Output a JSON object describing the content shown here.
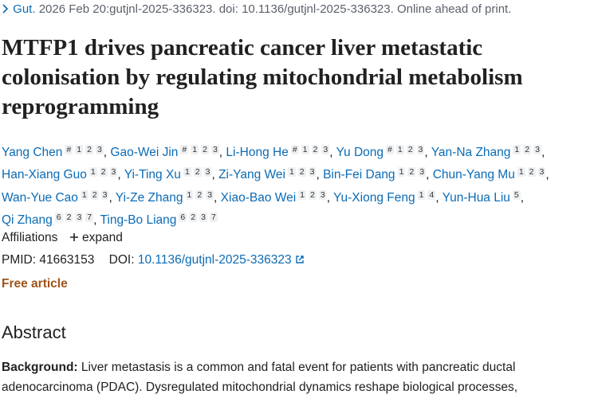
{
  "citation": {
    "journal": "Gut.",
    "details": "2026 Feb 20:gutjnl-2025-336323. doi: 10.1136/gutjnl-2025-336323. Online ahead of print."
  },
  "title": "MTFP1 drives pancreatic cancer liver metastatic colonisation by regulating mitochondrial metabolism reprogramming",
  "authors": {
    "separator": ",",
    "list": [
      {
        "name": "Yang Chen",
        "sups": [
          "#",
          "1",
          "2",
          "3"
        ]
      },
      {
        "name": "Gao-Wei Jin",
        "sups": [
          "#",
          "1",
          "2",
          "3"
        ]
      },
      {
        "name": "Li-Hong He",
        "sups": [
          "#",
          "1",
          "2",
          "3"
        ]
      },
      {
        "name": "Yu Dong",
        "sups": [
          "#",
          "1",
          "2",
          "3"
        ]
      },
      {
        "name": "Yan-Na Zhang",
        "sups": [
          "1",
          "2",
          "3"
        ]
      },
      {
        "name": "Han-Xiang Guo",
        "sups": [
          "1",
          "2",
          "3"
        ]
      },
      {
        "name": "Yi-Ting Xu",
        "sups": [
          "1",
          "2",
          "3"
        ]
      },
      {
        "name": "Zi-Yang Wei",
        "sups": [
          "1",
          "2",
          "3"
        ]
      },
      {
        "name": "Bin-Fei Dang",
        "sups": [
          "1",
          "2",
          "3"
        ]
      },
      {
        "name": "Chun-Yang Mu",
        "sups": [
          "1",
          "2",
          "3"
        ]
      },
      {
        "name": "Wan-Yue Cao",
        "sups": [
          "1",
          "2",
          "3"
        ]
      },
      {
        "name": "Yi-Ze Zhang",
        "sups": [
          "1",
          "2",
          "3"
        ]
      },
      {
        "name": "Xiao-Bao Wei",
        "sups": [
          "1",
          "2",
          "3"
        ]
      },
      {
        "name": "Yu-Xiong Feng",
        "sups": [
          "1",
          "4"
        ]
      },
      {
        "name": "Yun-Hua Liu",
        "sups": [
          "5"
        ]
      },
      {
        "name": "Qi Zhang",
        "sups": [
          "6",
          "2",
          "3",
          "7"
        ]
      },
      {
        "name": "Ting-Bo Liang",
        "sups": [
          "6",
          "2",
          "3",
          "7"
        ]
      }
    ]
  },
  "affiliations": {
    "label": "Affiliations",
    "toggle": "expand"
  },
  "identifiers": {
    "pmid_label": "PMID:",
    "pmid": "41663153",
    "doi_label": "DOI:",
    "doi": "10.1136/gutjnl-2025-336323"
  },
  "access": "Free article",
  "abstract": {
    "heading": "Abstract",
    "paragraphs": [
      {
        "label": "Background:",
        "text": "Liver metastasis is a common and fatal event for patients with pancreatic ductal adenocarcinoma (PDAC). Dysregulated mitochondrial dynamics reshape biological processes,"
      }
    ]
  }
}
